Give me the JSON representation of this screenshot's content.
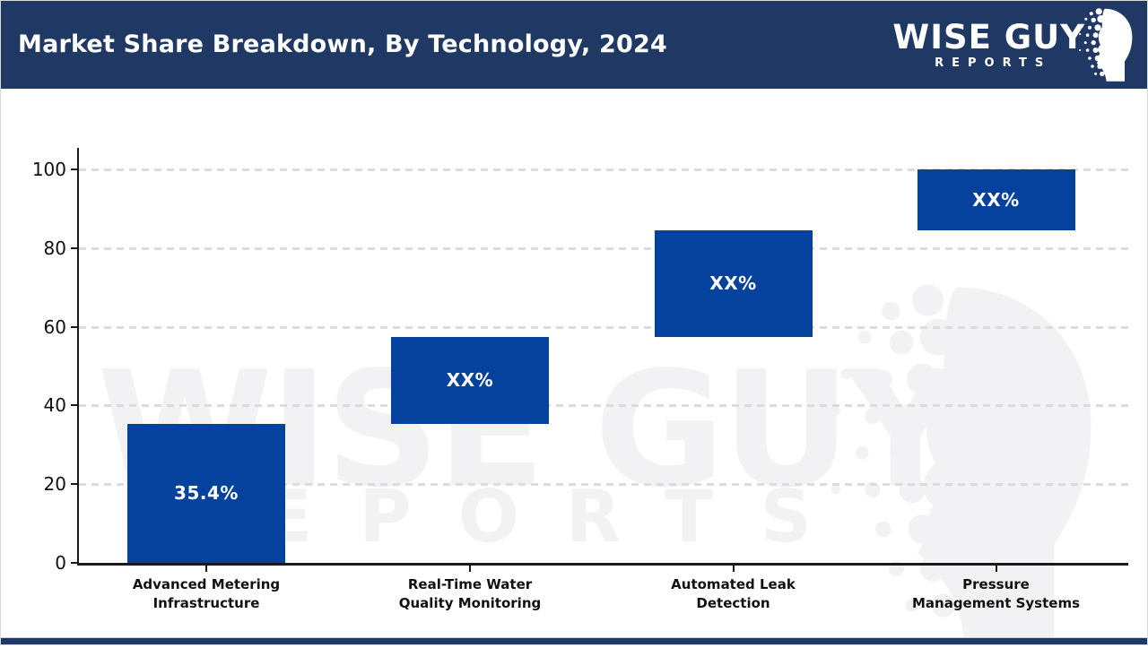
{
  "header": {
    "title": "Market Share Breakdown, By Technology, 2024",
    "logo": {
      "name_top": "WISE GUY",
      "name_bottom": "REPORTS"
    }
  },
  "watermark": {
    "text_top": "WISE GUY",
    "text_bottom": "REPORTS"
  },
  "colors": {
    "header_bg": "#1f3864",
    "footer_bg": "#1f3864",
    "bar_fill": "#05429e",
    "bar_label": "#ffffff",
    "gridline": "#dcdcdc",
    "axis": "#1a1a1a",
    "tick_label": "#111111",
    "watermark": "#f2f2f4"
  },
  "chart_data": {
    "type": "bar",
    "subtype": "floating-waterfall",
    "title": "Market Share Breakdown, By Technology, 2024",
    "categories": [
      "Advanced Metering\nInfrastructure",
      "Real-Time Water\nQuality Monitoring",
      "Automated Leak\nDetection",
      "Pressure\nManagement Systems"
    ],
    "segments": [
      {
        "category": "Advanced Metering Infrastructure",
        "start": 0,
        "end": 35.4,
        "label": "35.4%"
      },
      {
        "category": "Real-Time Water Quality Monitoring",
        "start": 35.4,
        "end": 57.5,
        "label": "XX%"
      },
      {
        "category": "Automated Leak Detection",
        "start": 57.5,
        "end": 84.5,
        "label": "XX%"
      },
      {
        "category": "Pressure Management Systems",
        "start": 84.5,
        "end": 100,
        "label": "XX%"
      }
    ],
    "ylim": [
      0,
      100
    ],
    "yticks": [
      0,
      20,
      40,
      60,
      80,
      100
    ],
    "grid": "dashed horizontal gridlines",
    "legend": "none",
    "bar_value_labels_inside": true
  }
}
